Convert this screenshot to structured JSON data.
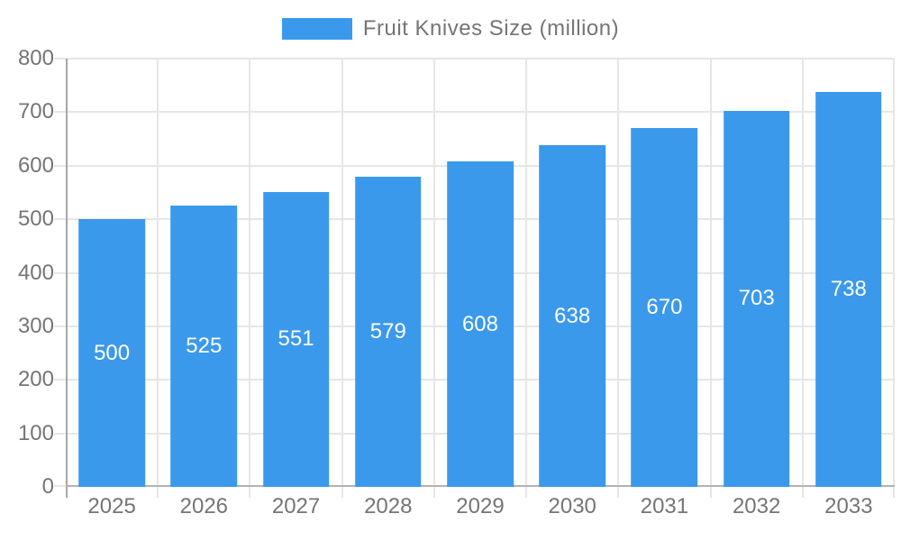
{
  "legend": {
    "label": "Fruit Knives Size (million)",
    "swatch_color": "#3B99EC"
  },
  "chart_data": {
    "type": "bar",
    "title": "Fruit Knives Size (million)",
    "series": [
      {
        "name": "Fruit Knives Size (million)",
        "values": [
          500,
          525,
          551,
          579,
          608,
          638,
          670,
          703,
          738
        ]
      }
    ],
    "categories": [
      "2025",
      "2026",
      "2027",
      "2028",
      "2029",
      "2030",
      "2031",
      "2032",
      "2033"
    ],
    "xlabel": "",
    "ylabel": "",
    "ylim": [
      0,
      800
    ],
    "ytick_interval": 100,
    "yticks": [
      0,
      100,
      200,
      300,
      400,
      500,
      600,
      700,
      800
    ],
    "grid": true,
    "legend_position": "top",
    "bar_label_position": "inside-center"
  },
  "colors": {
    "bar": "#3B99EC",
    "gridline": "#e6e6e6",
    "y_axis_line": "#a6a6a6",
    "x_baseline": "#b3b3b3",
    "axis_text": "#757575",
    "bar_label_text": "#ffffff",
    "background": "#ffffff"
  }
}
